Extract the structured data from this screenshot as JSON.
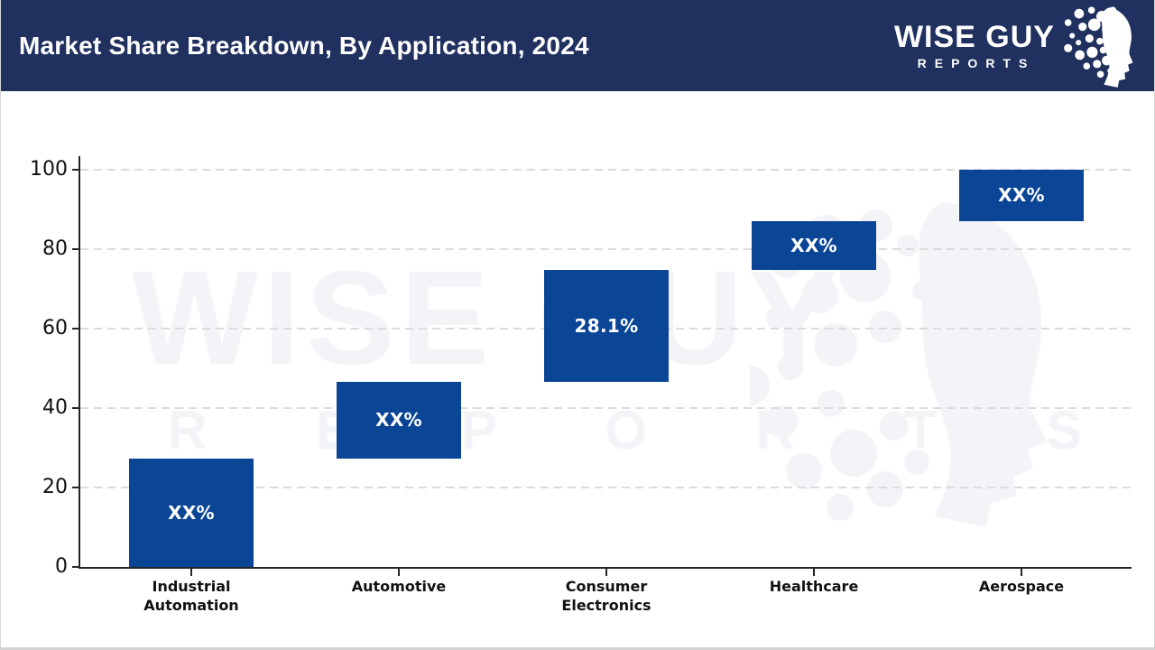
{
  "header": {
    "title": "Market Share Breakdown, By Application, 2024",
    "logo": {
      "line1": "WISE GUY",
      "line2": "REPORTS"
    }
  },
  "watermark": {
    "line1": "WISE GUY",
    "line2": "R E P O R T S"
  },
  "colors": {
    "header_bg": "#20305f",
    "bar": "#0a4596",
    "watermark": "#f3f4f7",
    "grid": "#dbdbdb",
    "axis": "#262626",
    "bar_label": "#ffffff"
  },
  "chart_data": {
    "type": "bar",
    "subtype": "waterfall",
    "title": "Market Share Breakdown, By Application, 2024",
    "categories": [
      "Industrial Automation",
      "Automotive",
      "Consumer Electronics",
      "Healthcare",
      "Aerospace"
    ],
    "categories_display": [
      "Industrial\nAutomation",
      "Automotive",
      "Consumer\nElectronics",
      "Healthcare",
      "Aerospace"
    ],
    "segments": [
      [
        0,
        27.3
      ],
      [
        27.3,
        46.6
      ],
      [
        46.6,
        74.7
      ],
      [
        74.7,
        87.1
      ],
      [
        87.1,
        100
      ]
    ],
    "values": [
      27.3,
      19.3,
      28.1,
      12.4,
      12.9
    ],
    "bar_labels": [
      "XX%",
      "XX%",
      "28.1%",
      "XX%",
      "XX%"
    ],
    "yticks": [
      0,
      20,
      40,
      60,
      80,
      100
    ],
    "ylim": [
      0,
      103.5
    ],
    "xlabel": "",
    "ylabel": "",
    "grid": "dashed-horizontal",
    "legend": "none"
  }
}
